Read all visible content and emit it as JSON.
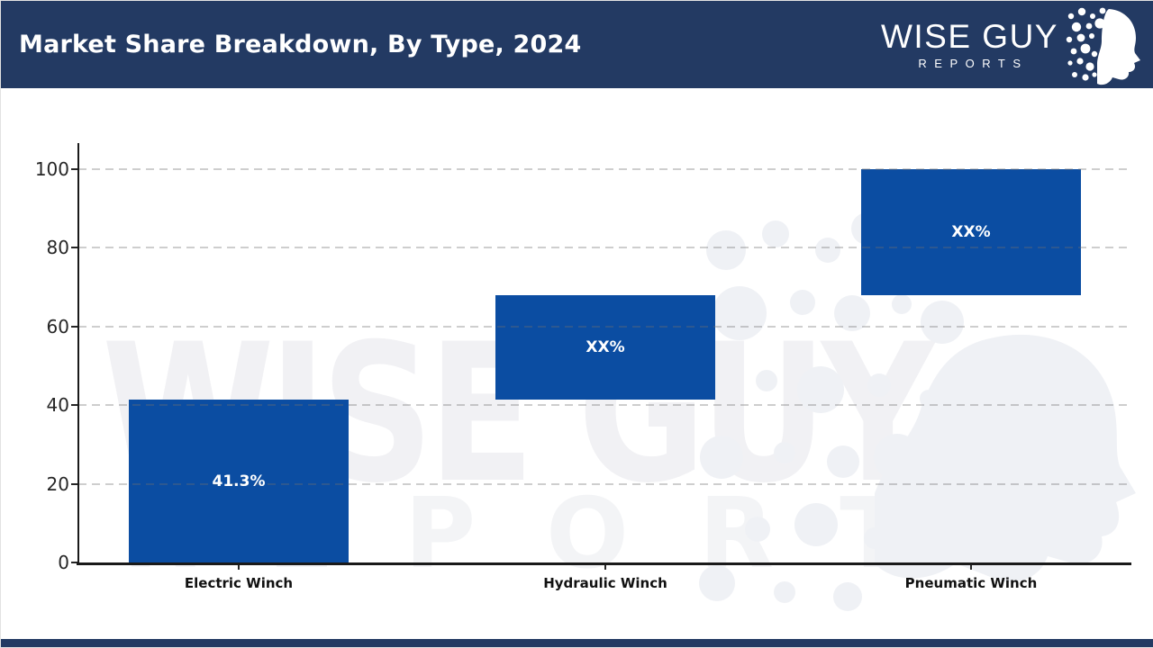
{
  "header": {
    "title": "Market Share Breakdown, By Type, 2024",
    "logo": {
      "line1": "WISE GUY",
      "line2": "REPORTS"
    }
  },
  "watermark": {
    "line1": "WISE GUY",
    "line2": "REPORTS"
  },
  "colors": {
    "header_bg": "#233A63",
    "footer_bg": "#233A63",
    "bar": "#0B4DA2",
    "bar_label": "#FFFFFF",
    "axis": "#262626",
    "watermark": "#F1F1F4"
  },
  "chart_data": {
    "type": "bar",
    "subtype": "waterfall-stacked-percentage",
    "title": "Market Share Breakdown, By Type, 2024",
    "categories": [
      "Electric Winch",
      "Hydraulic Winch",
      "Pneumatic Winch"
    ],
    "series": [
      {
        "name": "Market Share",
        "segments": [
          {
            "category": "Electric Winch",
            "start": 0,
            "end": 41.3,
            "label": "41.3%"
          },
          {
            "category": "Hydraulic Winch",
            "start": 41.3,
            "end": 68,
            "label": "XX%"
          },
          {
            "category": "Pneumatic Winch",
            "start": 68,
            "end": 100,
            "label": "XX%"
          }
        ]
      }
    ],
    "xlabel": "",
    "ylabel": "",
    "ylim": [
      0,
      100
    ],
    "yticks": [
      0,
      20,
      40,
      60,
      80,
      100
    ],
    "grid": "horizontal-dashed",
    "legend": "none",
    "bar_color": "#0B4DA2"
  }
}
